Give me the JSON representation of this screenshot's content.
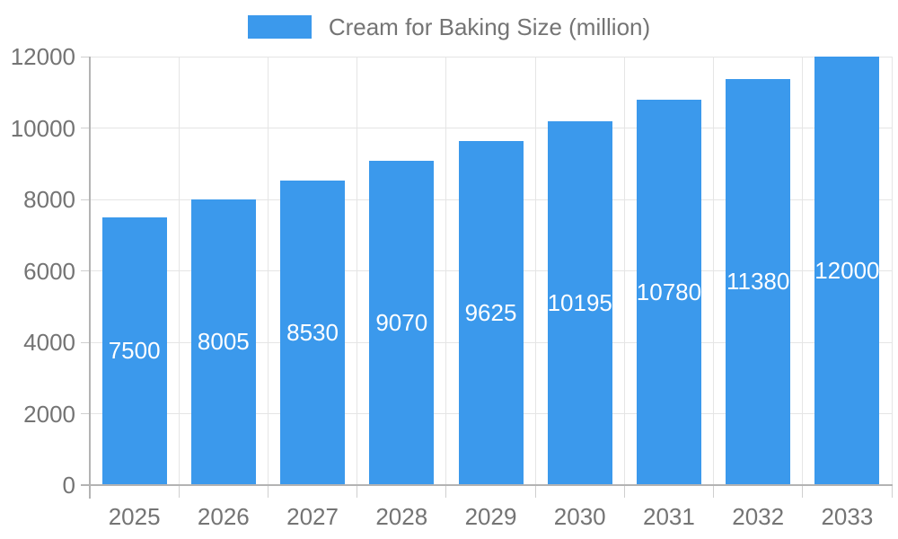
{
  "colors": {
    "bar": "#3B99EC",
    "text": "#747474",
    "grid": "#E5E5E5",
    "tick": "#CFCFCF",
    "axis": "#B3B3B3",
    "value_label": "#FFFFFF",
    "background": "#FFFFFF"
  },
  "legend": {
    "position": "top",
    "label": "Cream for Baking Size (million)"
  },
  "chart_data": {
    "type": "bar",
    "title": "Cream for Baking Size (million)",
    "categories": [
      "2025",
      "2026",
      "2027",
      "2028",
      "2029",
      "2030",
      "2031",
      "2032",
      "2033"
    ],
    "series": [
      {
        "name": "Cream for Baking Size (million)",
        "color": "#3B99EC",
        "values": [
          7500,
          8005,
          8530,
          9070,
          9625,
          10195,
          10780,
          11380,
          12000
        ]
      }
    ],
    "xlabel": "",
    "ylabel": "",
    "ylim": [
      0,
      12000
    ],
    "yticks": [
      0,
      2000,
      4000,
      6000,
      8000,
      10000,
      12000
    ],
    "grid": true,
    "legend_position": "top",
    "value_labels_position": "inside-center"
  }
}
